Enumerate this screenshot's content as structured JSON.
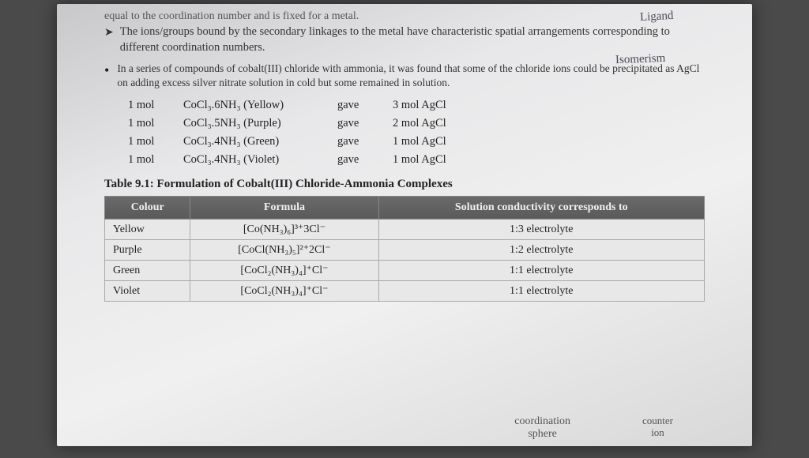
{
  "cut_line": "equal to the coordination number and is fixed for a metal.",
  "bullet_main": "The ions/groups bound by the secondary linkages to the metal have characteristic spatial arrangements corresponding to different coordination numbers.",
  "sub_bullet": "In a series of compounds of cobalt(III) chloride with ammonia, it was found that some of the chloride ions could be precipitated as AgCl on adding excess silver nitrate solution in cold but some remained in solution.",
  "reactions": [
    {
      "mol": "1 mol",
      "compound": "CoCl₃.6NH₃ (Yellow)",
      "gave": "gave",
      "result": "3 mol AgCl"
    },
    {
      "mol": "1 mol",
      "compound": "CoCl₃.5NH₃ (Purple)",
      "gave": "gave",
      "result": "2 mol AgCl"
    },
    {
      "mol": "1 mol",
      "compound": "CoCl₃.4NH₃ (Green)",
      "gave": "gave",
      "result": "1 mol AgCl"
    },
    {
      "mol": "1 mol",
      "compound": "CoCl₃.4NH₃ (Violet)",
      "gave": "gave",
      "result": "1 mol AgCl"
    }
  ],
  "table_caption": "Table 9.1: Formulation of Cobalt(III) Chloride-Ammonia Complexes",
  "table": {
    "columns": [
      "Colour",
      "Formula",
      "Solution conductivity corresponds to"
    ],
    "rows": [
      {
        "colour": "Yellow",
        "formula": "[Co(NH₃)₆]³⁺3Cl⁻",
        "cond": "1:3 electrolyte"
      },
      {
        "colour": "Purple",
        "formula": "[CoCl(NH₃)₅]²⁺2Cl⁻",
        "cond": "1:2 electrolyte"
      },
      {
        "colour": "Green",
        "formula": "[CoCl₂(NH₃)₄]⁺Cl⁻",
        "cond": "1:1 electrolyte"
      },
      {
        "colour": "Violet",
        "formula": "[CoCl₂(NH₃)₄]⁺Cl⁻",
        "cond": "1:1 electrolyte"
      }
    ],
    "header_bg": "#5f5f5f",
    "header_fg": "#f0f0f0",
    "cell_bg": "#e8e8e8",
    "border_color": "#aaaaaa",
    "fontsize": 14
  },
  "handwriting": {
    "h1": "Ligand",
    "h2": "Isomerism",
    "h3_line1": "coordination",
    "h3_line2": "sphere",
    "h4_line1": "counter",
    "h4_line2": "ion"
  },
  "colors": {
    "page_bg": "#e8e8ea",
    "body_bg": "#4a4a4a",
    "text": "#2a2a2a"
  }
}
